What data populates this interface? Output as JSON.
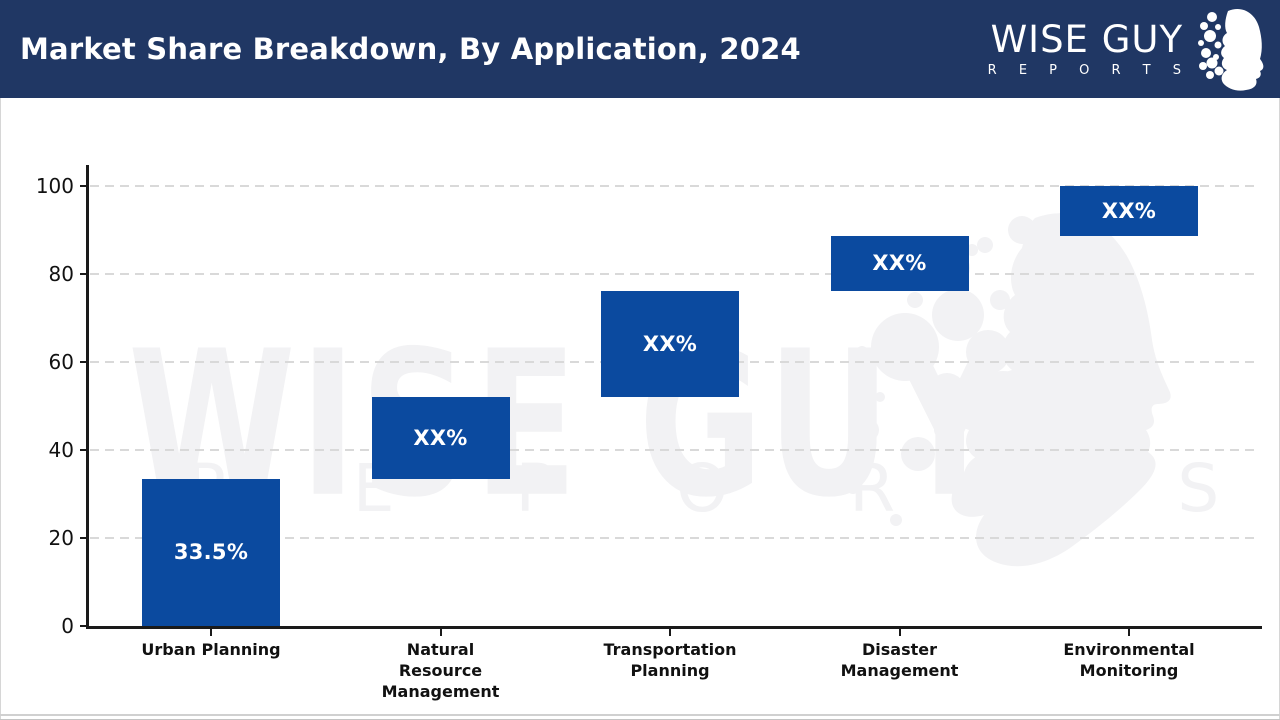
{
  "header": {
    "title": "Market Share Breakdown, By Application, 2024",
    "bg_color": "#203764",
    "logo": {
      "line1": "WISE GUY",
      "line2": "R E P O R T S"
    }
  },
  "watermark": {
    "line1": "WISE GUY",
    "line2": "R E P O R T S"
  },
  "colors": {
    "bar": "#0b4a9f",
    "bar_label": "#ffffff",
    "gridline": "#d9d9d9",
    "axis": "#1a1a1a",
    "watermark": "#f2f2f4",
    "header_bg": "#203764"
  },
  "chart_data": {
    "type": "bar",
    "variant": "waterfall",
    "title": "Market Share Breakdown, By Application, 2024",
    "xlabel": "",
    "ylabel": "",
    "ylim": [
      0,
      100
    ],
    "yticks": [
      0,
      20,
      40,
      60,
      80,
      100
    ],
    "grid": {
      "horizontal": true,
      "style": "dashed",
      "color": "#d9d9d9"
    },
    "legend": "none",
    "bar_color": "#0b4a9f",
    "categories": [
      "Urban Planning",
      "Natural Resource Management",
      "Transportation Planning",
      "Disaster Management",
      "Environmental Monitoring"
    ],
    "segments": [
      {
        "category": "Urban Planning",
        "start": 0,
        "end": 33.5,
        "value": 33.5,
        "label": "33.5%"
      },
      {
        "category": "Natural Resource Management",
        "start": 33.5,
        "end": 52,
        "value": 18.5,
        "label": "XX%"
      },
      {
        "category": "Transportation Planning",
        "start": 52,
        "end": 76.2,
        "value": 24.2,
        "label": "XX%"
      },
      {
        "category": "Disaster Management",
        "start": 76.2,
        "end": 88.6,
        "value": 12.4,
        "label": "XX%"
      },
      {
        "category": "Environmental Monitoring",
        "start": 88.6,
        "end": 100,
        "value": 11.4,
        "label": "XX%"
      }
    ]
  }
}
